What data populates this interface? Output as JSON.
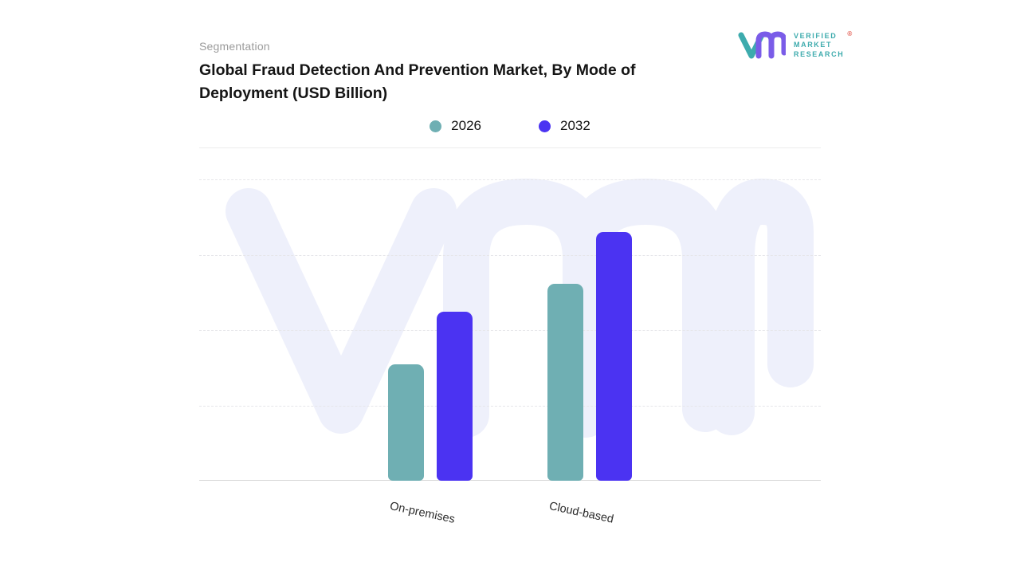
{
  "header": {
    "eyebrow": "Segmentation",
    "title": "Global Fraud Detection And Prevention Market, By Mode of Deployment (USD Billion)"
  },
  "logo": {
    "line1": "VERIFIED",
    "line2": "MARKET",
    "line3": "RESEARCH",
    "registered": "®"
  },
  "legend": [
    {
      "label": "2026",
      "color": "#6fafb3"
    },
    {
      "label": "2032",
      "color": "#4b33f2"
    }
  ],
  "chart_data": {
    "type": "bar",
    "title": "Global Fraud Detection And Prevention Market, By Mode of Deployment (USD Billion)",
    "unit": "USD Billion",
    "categories": [
      "On-premises",
      "Cloud-based"
    ],
    "series": [
      {
        "name": "2026",
        "color": "#6fafb3",
        "values": [
          14.5,
          24.5
        ]
      },
      {
        "name": "2032",
        "color": "#4b33f2",
        "values": [
          21,
          31
        ]
      }
    ],
    "ylim": [
      0,
      37.5
    ],
    "grid": "horizontal-dashed",
    "legend_position": "top-center",
    "axis_value_labels_visible": false
  },
  "colors": {
    "watermark": "#eef0fb",
    "brand_teal": "#3dabad",
    "brand_purple": "#7a5ce8",
    "registered_mark": "#e2574c"
  }
}
